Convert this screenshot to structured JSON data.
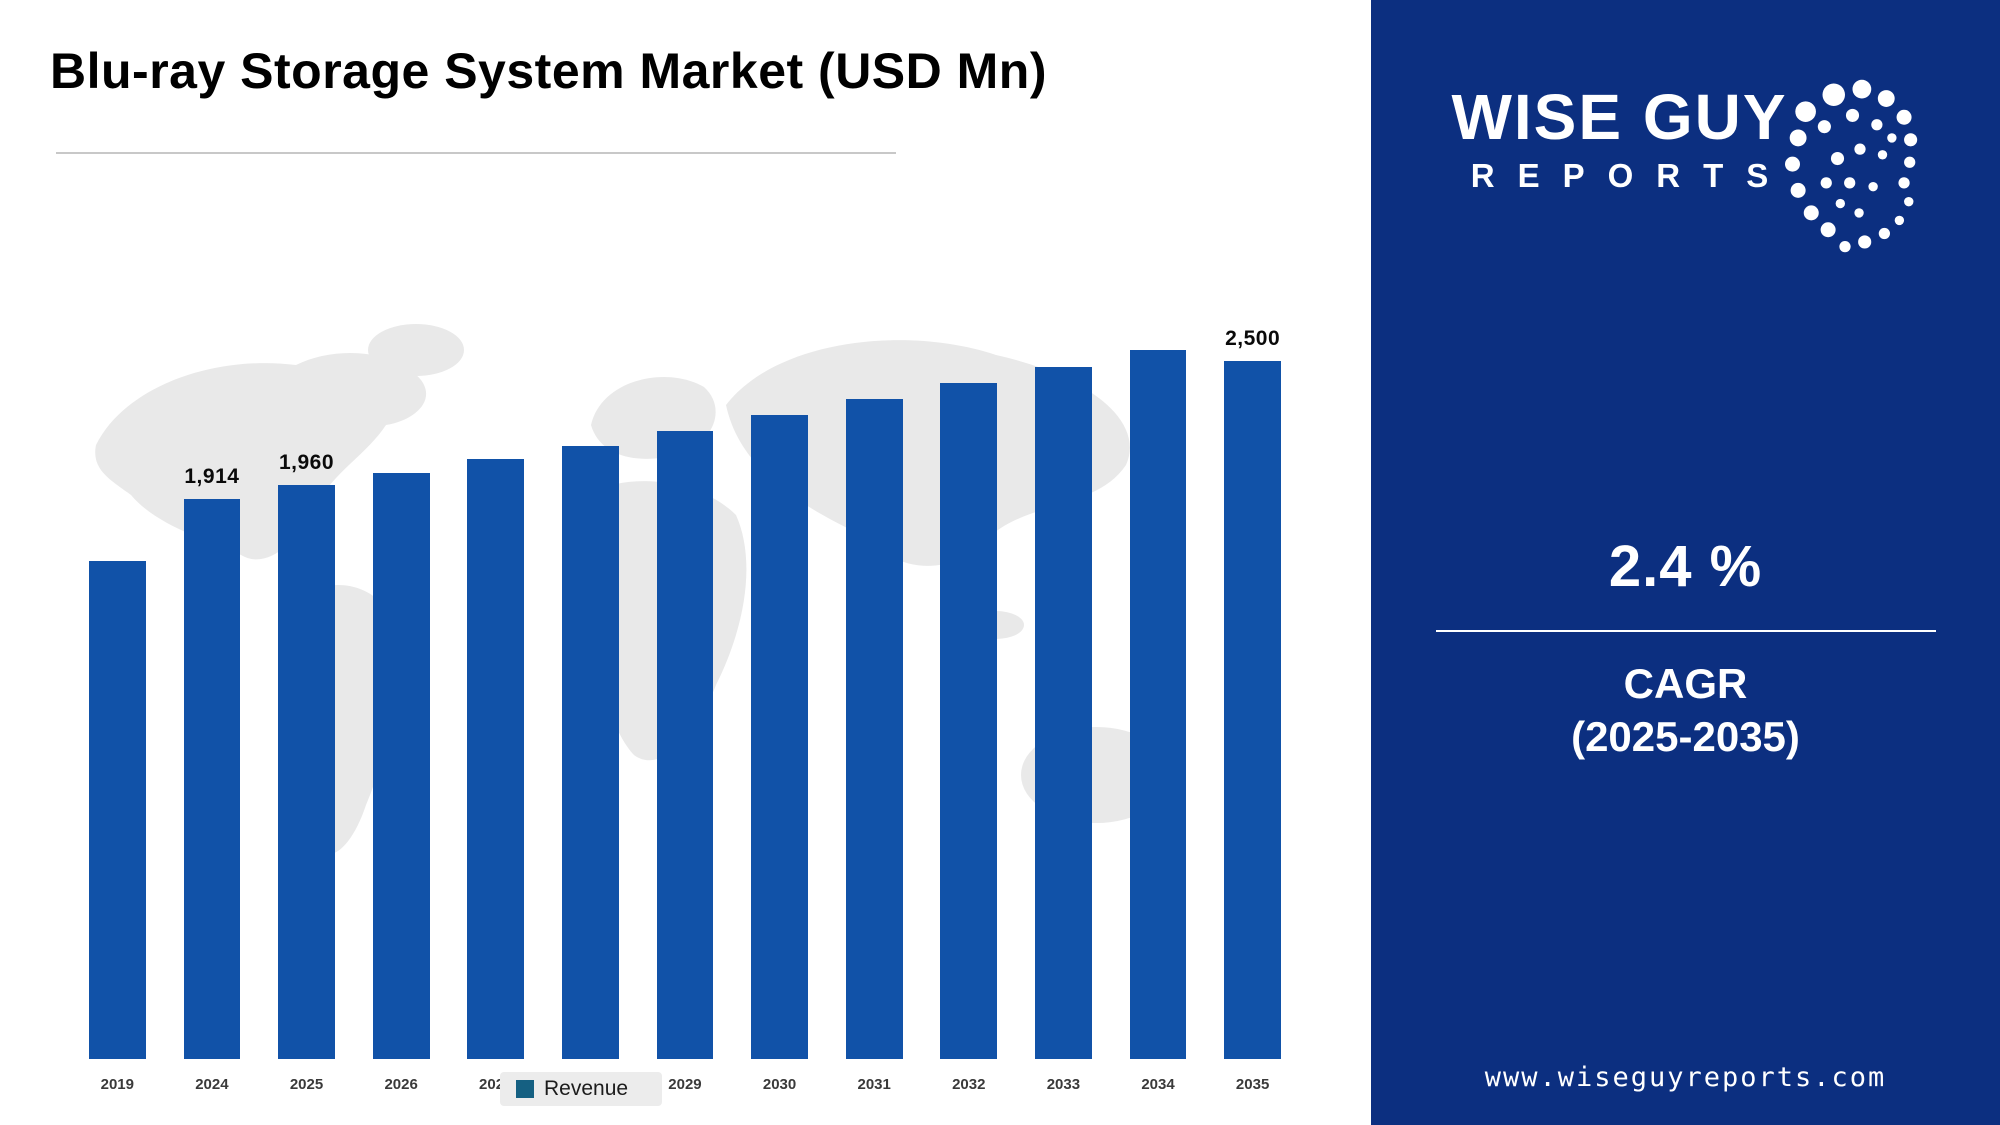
{
  "title": "Blu-ray Storage System Market (USD Mn)",
  "legend": {
    "label": "Revenue",
    "swatch_color": "#156082"
  },
  "chart_data": {
    "type": "bar",
    "title": "Blu-ray Storage System Market (USD Mn)",
    "series_name": "Revenue",
    "categories": [
      "2019",
      "2024",
      "2025",
      "2026",
      "2027",
      "2028",
      "2029",
      "2030",
      "2031",
      "2032",
      "2033",
      "2034",
      "2035"
    ],
    "values": [
      1700,
      1914,
      1960,
      2000,
      2050,
      2095,
      2145,
      2200,
      2255,
      2310,
      2365,
      2420,
      2500
    ],
    "data_labels": [
      "",
      "1,914",
      "1,960",
      "",
      "",
      "",
      "",
      "",
      "",
      "",
      "",
      "",
      "2,500"
    ],
    "xlabel": "",
    "ylabel": "",
    "ylim": [
      0,
      2500
    ],
    "grid": false,
    "legend_position": "bottom",
    "bar_color": "#1152a8"
  },
  "panel": {
    "background_color": "#0c2f80",
    "logo_line1": "WISE GUY",
    "logo_line2": "REPORTS",
    "cagr_value": "2.4 %",
    "cagr_line1": "CAGR",
    "cagr_line2": "(2025-2035)",
    "website": "www.wiseguyreports.com"
  }
}
